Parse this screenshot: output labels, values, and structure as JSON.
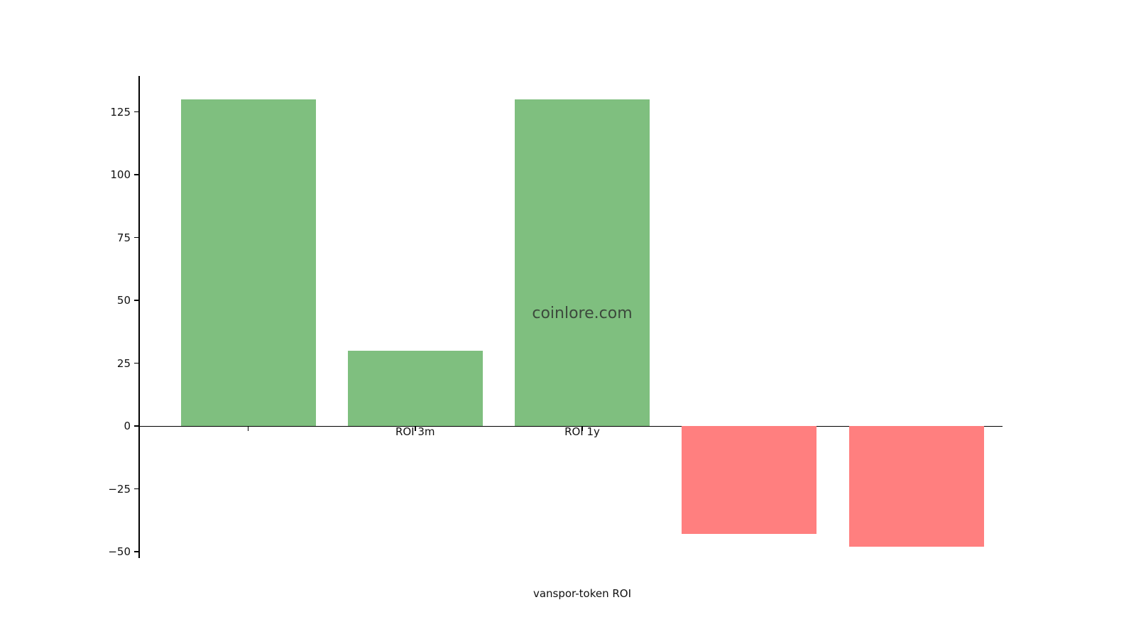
{
  "chart_data": {
    "type": "bar",
    "title": "vanspor-token ROI",
    "xlabel": "vanspor-token ROI",
    "ylabel": "",
    "watermark": "coinlore.com",
    "categories": [
      "",
      "ROI 3m",
      "ROI 1y",
      "",
      ""
    ],
    "values": [
      130,
      30,
      130,
      -43,
      -48
    ],
    "bar_colors": [
      "#7fbf7f",
      "#7fbf7f",
      "#7fbf7f",
      "#ff7f7f",
      "#ff7f7f"
    ],
    "positive_color": "#7fbf7f",
    "negative_color": "#ff7f7f",
    "yticks": [
      125,
      100,
      75,
      50,
      25,
      0,
      -25,
      -50
    ],
    "ytick_labels": [
      "125",
      "100",
      "75",
      "50",
      "25",
      "0",
      "−25",
      "−50"
    ],
    "ylim": [
      -53,
      139
    ],
    "grid": false,
    "legend": null,
    "axis_color": "#000000",
    "text_color": "#111111"
  }
}
